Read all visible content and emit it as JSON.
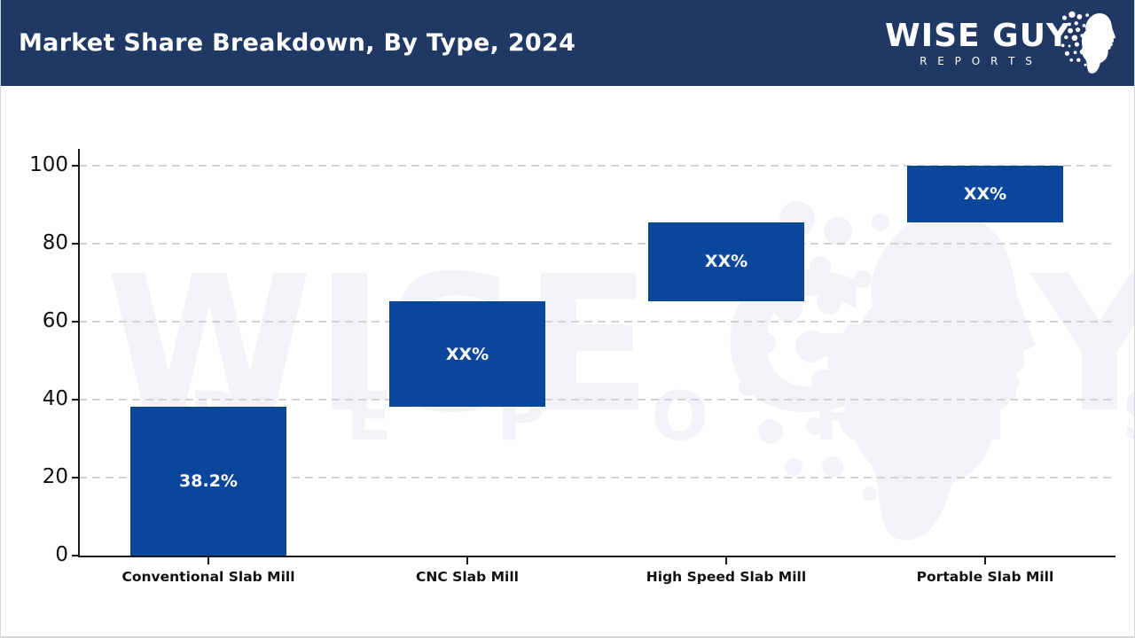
{
  "header": {
    "title": "Market Share Breakdown, By Type, 2024",
    "logo": {
      "wordmark": "WISE GUY",
      "subtext": "R E P O R T S"
    }
  },
  "watermark": {
    "wordmark": "WISE GUY",
    "subtext": "R E P O R T S"
  },
  "chart_data": {
    "type": "bar",
    "subtype": "floating-waterfall",
    "title": "Market Share Breakdown, By Type, 2024",
    "categories": [
      "Conventional Slab Mill",
      "CNC Slab Mill",
      "High Speed Slab Mill",
      "Portable Slab Mill"
    ],
    "series": [
      {
        "name": "Market share (%)",
        "segments": [
          {
            "category": "Conventional Slab Mill",
            "start": 0,
            "end": 38.2,
            "label": "38.2%"
          },
          {
            "category": "CNC Slab Mill",
            "start": 38.2,
            "end": 65.2,
            "label": "XX%"
          },
          {
            "category": "High Speed Slab Mill",
            "start": 65.2,
            "end": 85.5,
            "label": "XX%"
          },
          {
            "category": "Portable Slab Mill",
            "start": 85.5,
            "end": 100,
            "label": "XX%"
          }
        ]
      }
    ],
    "xlabel": "",
    "ylabel": "",
    "ylim": [
      0,
      105
    ],
    "yticks": [
      0,
      20,
      40,
      60,
      80,
      100
    ],
    "grid": "horizontal-dashed",
    "legend": "none",
    "bar_color": "#0a479c",
    "bar_label_color": "#ffffff"
  },
  "colors": {
    "header_bg": "#1f3864",
    "bar": "#0a479c",
    "axis": "#1a1a1a",
    "grid": "#d3d3d3",
    "watermark": "#f2f3f6",
    "text": "#111111"
  }
}
